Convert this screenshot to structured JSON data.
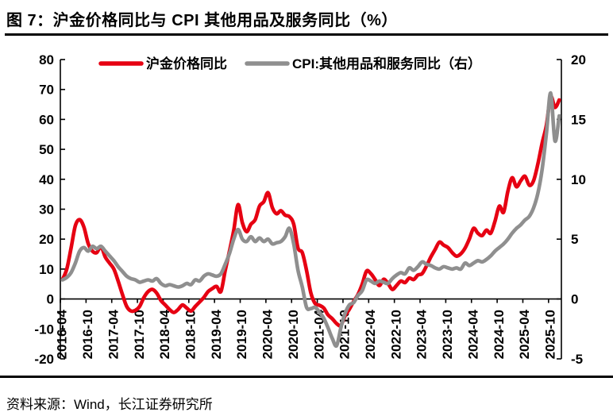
{
  "header": {
    "title": "图 7：沪金价格同比与 CPI 其他用品及服务同比（%）"
  },
  "footer": {
    "source": "资料来源：Wind，长江证券研究所"
  },
  "colors": {
    "gold_series": "#e60012",
    "cpi_series": "#8f8f8f",
    "axis": "#000000",
    "background": "#ffffff"
  },
  "chart_data": {
    "type": "line",
    "title": "沪金价格同比与 CPI 其他用品及服务同比（%）",
    "legend_position": "top",
    "grid": false,
    "legend": [
      {
        "name": "沪金价格同比",
        "color": "#e60012",
        "axis": "left"
      },
      {
        "name": "CPI:其他用品和服务同比（右）",
        "color": "#8f8f8f",
        "axis": "right"
      }
    ],
    "left_axis": {
      "min": -20,
      "max": 80,
      "step": 10,
      "ticks": [
        "80",
        "70",
        "60",
        "50",
        "40",
        "30",
        "20",
        "10",
        "0",
        "-10",
        "-20"
      ]
    },
    "right_axis": {
      "min": -5,
      "max": 20,
      "step": 5,
      "ticks": [
        "20",
        "15",
        "10",
        "5",
        "0",
        "-5"
      ]
    },
    "x_ticks": [
      "2016-04",
      "2016-10",
      "2017-04",
      "2017-10",
      "2018-04",
      "2018-10",
      "2019-04",
      "2019-10",
      "2020-04",
      "2020-10",
      "2021-04",
      "2021-10",
      "2022-04",
      "2022-10",
      "2023-04",
      "2023-10",
      "2024-04",
      "2024-10",
      "2025-04",
      "2025-10"
    ],
    "x_tick_every": 6,
    "categories": [
      "2016-04",
      "2016-05",
      "2016-06",
      "2016-07",
      "2016-08",
      "2016-09",
      "2016-10",
      "2016-11",
      "2016-12",
      "2017-01",
      "2017-02",
      "2017-03",
      "2017-04",
      "2017-05",
      "2017-06",
      "2017-07",
      "2017-08",
      "2017-09",
      "2017-10",
      "2017-11",
      "2017-12",
      "2018-01",
      "2018-02",
      "2018-03",
      "2018-04",
      "2018-05",
      "2018-06",
      "2018-07",
      "2018-08",
      "2018-09",
      "2018-10",
      "2018-11",
      "2018-12",
      "2019-01",
      "2019-02",
      "2019-03",
      "2019-04",
      "2019-05",
      "2019-06",
      "2019-07",
      "2019-08",
      "2019-09",
      "2019-10",
      "2019-11",
      "2019-12",
      "2020-01",
      "2020-02",
      "2020-03",
      "2020-04",
      "2020-05",
      "2020-06",
      "2020-07",
      "2020-08",
      "2020-09",
      "2020-10",
      "2020-11",
      "2020-12",
      "2021-01",
      "2021-02",
      "2021-03",
      "2021-04",
      "2021-05",
      "2021-06",
      "2021-07",
      "2021-08",
      "2021-09",
      "2021-10",
      "2021-11",
      "2021-12",
      "2022-01",
      "2022-02",
      "2022-03",
      "2022-04",
      "2022-05",
      "2022-06",
      "2022-07",
      "2022-08",
      "2022-09",
      "2022-10",
      "2022-11",
      "2022-12",
      "2023-01",
      "2023-02",
      "2023-03",
      "2023-04",
      "2023-05",
      "2023-06",
      "2023-07",
      "2023-08",
      "2023-09",
      "2023-10",
      "2023-11",
      "2023-12",
      "2024-01",
      "2024-02",
      "2024-03",
      "2024-04",
      "2024-05",
      "2024-06",
      "2024-07",
      "2024-08",
      "2024-09",
      "2024-10",
      "2024-11",
      "2024-12",
      "2025-01",
      "2025-02",
      "2025-03",
      "2025-04",
      "2025-05",
      "2025-06",
      "2025-07",
      "2025-08",
      "2025-09",
      "2025-10",
      "2025-11",
      "2025-12"
    ],
    "series": [
      {
        "name": "沪金价格同比",
        "axis": "left",
        "color": "#e60012",
        "values": [
          6.5,
          10,
          17,
          24.5,
          26.5,
          24,
          18.5,
          16,
          15.5,
          17.5,
          14,
          12,
          10,
          6,
          1.5,
          -2.5,
          -4,
          -3.8,
          -2.5,
          0.5,
          2.5,
          3.2,
          2,
          -0.5,
          -2,
          -3.5,
          -4.5,
          -3.5,
          -2,
          -3,
          -4,
          -2.5,
          -1,
          0.5,
          2.5,
          3.5,
          4.2,
          2.5,
          9.5,
          16,
          23,
          31.5,
          25.5,
          22.5,
          25,
          26.5,
          31,
          32.5,
          35.5,
          30.5,
          28.5,
          29.5,
          28,
          27.5,
          25,
          17,
          15.5,
          9.5,
          2,
          -1.5,
          -2.1,
          -3,
          -5.3,
          -6.6,
          -8.2,
          -8.8,
          -5.6,
          -3.4,
          -0.8,
          1.5,
          5,
          9.3,
          8.5,
          6.5,
          4.5,
          6.6,
          5.2,
          3.2,
          4.5,
          6,
          5.5,
          7,
          6.5,
          8,
          8.5,
          11,
          14,
          16.5,
          19,
          18,
          17.2,
          15.5,
          14.3,
          15.1,
          17,
          20,
          23.6,
          22,
          21.2,
          23,
          22,
          26,
          31,
          29,
          36,
          40.5,
          37.5,
          39.5,
          41,
          38,
          39.5,
          45,
          52,
          58,
          67.5,
          64,
          66.5
        ]
      },
      {
        "name": "CPI:其他用品和服务同比（右）",
        "axis": "right",
        "color": "#8f8f8f",
        "values": [
          1.6,
          1.8,
          2.2,
          3.0,
          4.0,
          4.3,
          4.0,
          4.4,
          4.2,
          4.4,
          4.0,
          3.6,
          3.2,
          2.7,
          2.3,
          1.9,
          1.7,
          1.6,
          1.4,
          1.5,
          1.6,
          1.5,
          1.7,
          1.3,
          1.1,
          1.2,
          1.1,
          1.0,
          1.1,
          1.3,
          1.2,
          1.6,
          1.5,
          1.9,
          2.1,
          2.0,
          1.9,
          2.1,
          2.9,
          3.8,
          5.0,
          5.8,
          5.0,
          4.8,
          5.2,
          4.8,
          5.1,
          4.8,
          5.0,
          4.6,
          4.7,
          4.8,
          5.2,
          5.9,
          4.6,
          2.4,
          1.0,
          -0.7,
          -0.8,
          -0.7,
          -1.1,
          -1.6,
          -2.4,
          -3.3,
          -3.9,
          -2.4,
          -1.2,
          -0.5,
          -0.3,
          0.3,
          0.7,
          1.6,
          1.5,
          1.3,
          1.5,
          1.4,
          1.3,
          1.7,
          2.0,
          2.2,
          2.1,
          2.6,
          2.4,
          2.7,
          3.1,
          2.9,
          2.8,
          2.6,
          2.5,
          2.7,
          2.6,
          2.5,
          2.6,
          2.5,
          3.0,
          2.8,
          3.0,
          3.2,
          3.1,
          3.3,
          3.6,
          4.0,
          4.3,
          4.6,
          5.0,
          5.5,
          5.9,
          6.2,
          6.6,
          6.9,
          7.6,
          8.8,
          10.8,
          13.8,
          17.2,
          13.2,
          15.3
        ]
      }
    ]
  }
}
